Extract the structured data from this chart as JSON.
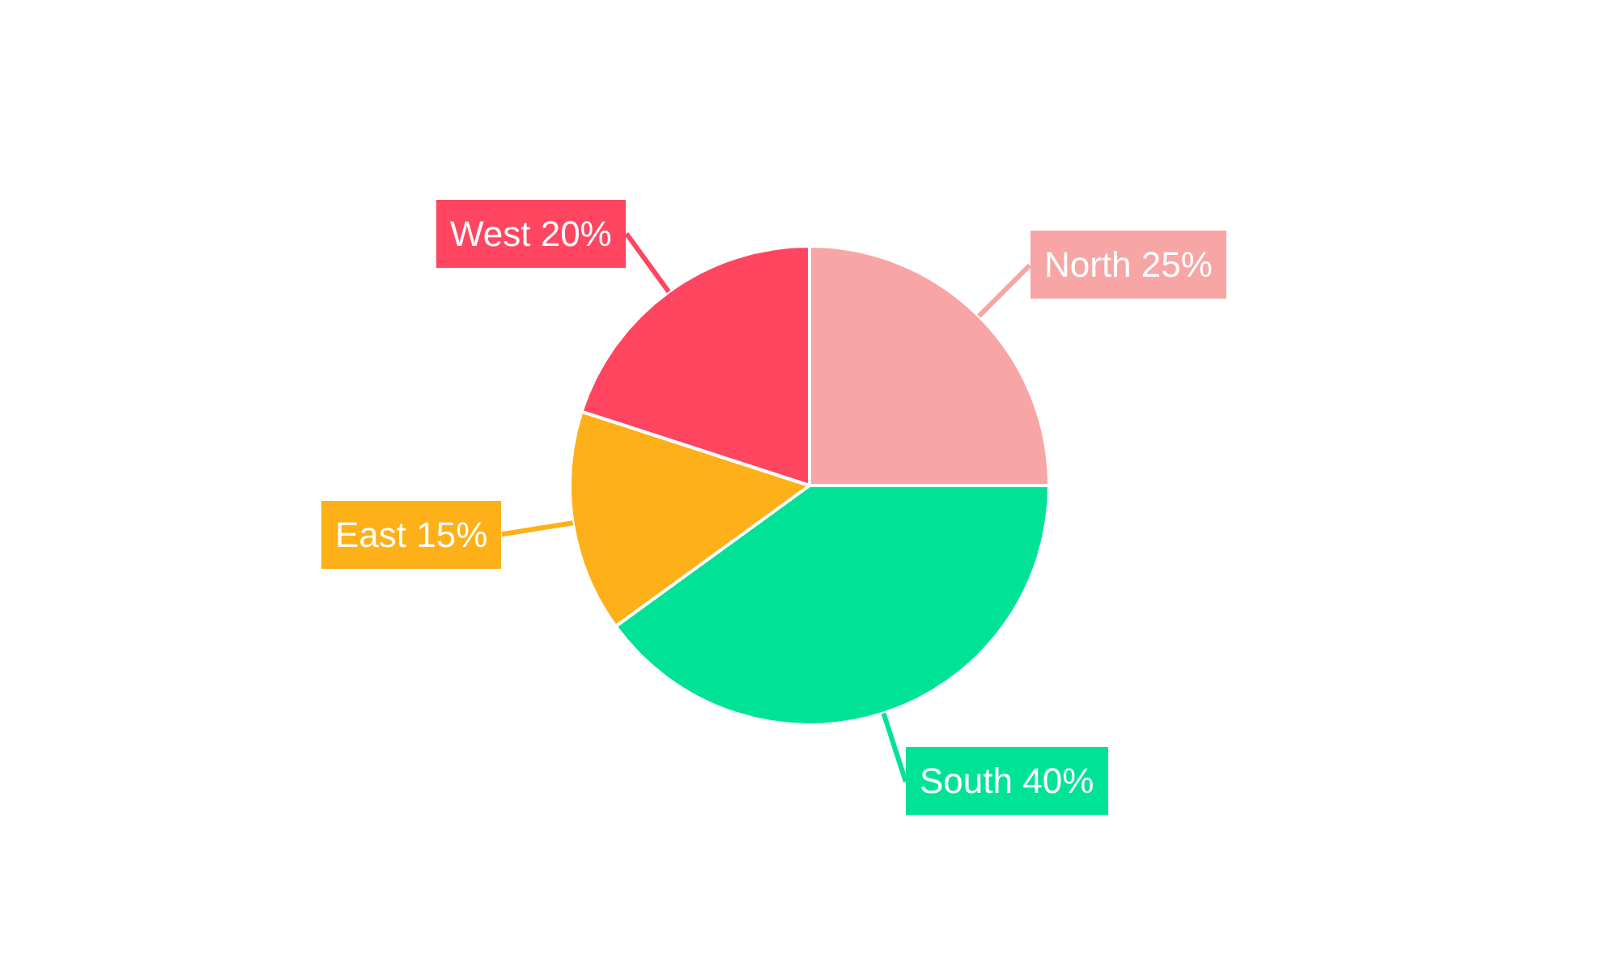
{
  "chart_data": {
    "type": "pie",
    "categories": [
      "North",
      "South",
      "East",
      "West"
    ],
    "values": [
      25,
      40,
      15,
      20
    ],
    "colors": [
      "#f8a5a5",
      "#00e396",
      "#feb019",
      "#ff4560"
    ],
    "value_labels": [
      "25%",
      "40%",
      "15%",
      "20%"
    ],
    "legend": false
  }
}
